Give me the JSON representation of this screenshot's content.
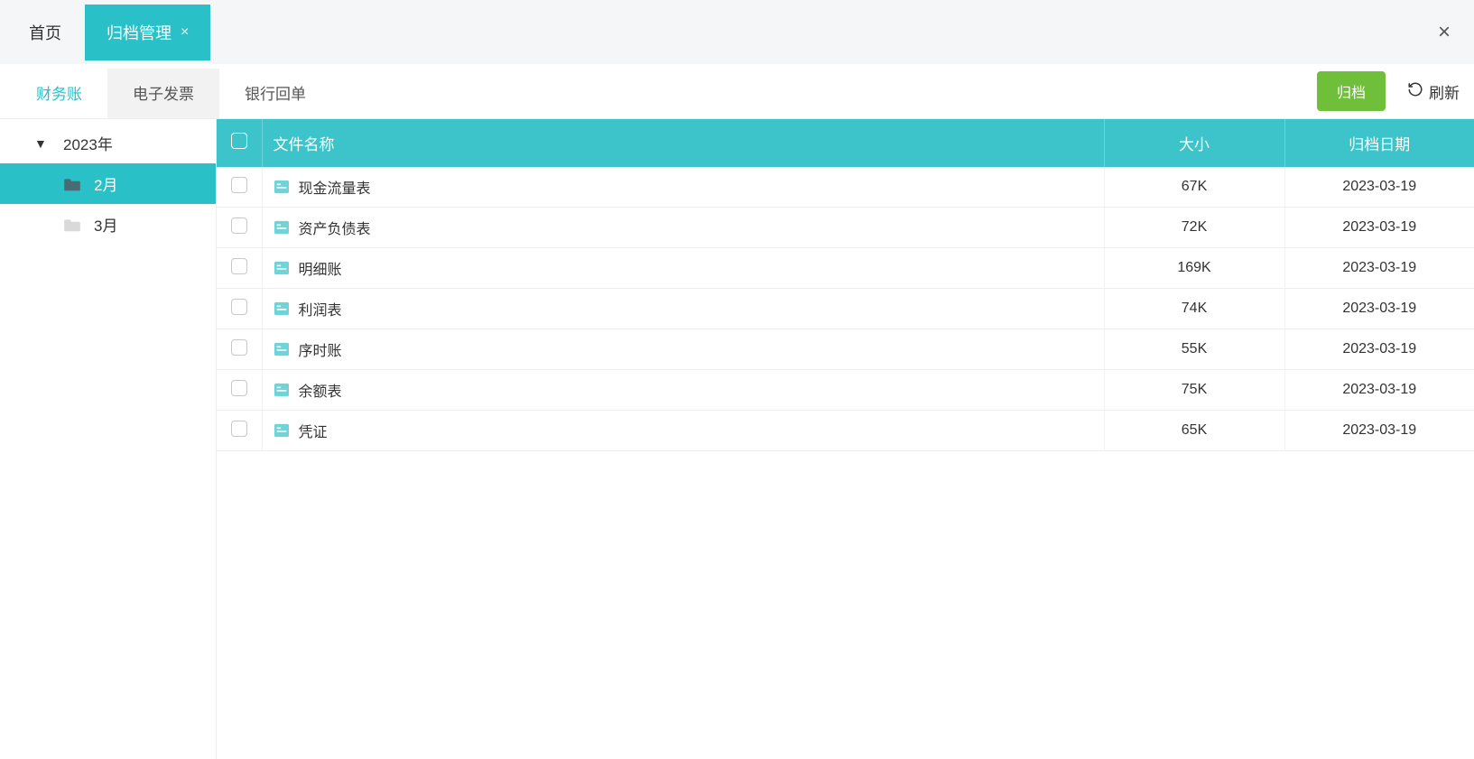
{
  "colors": {
    "accent": "#29c0c7",
    "table_header": "#3dc4cb",
    "primary_btn": "#6fbf3b",
    "file_icon": "#6fd3d8",
    "folder_active": "#4a6a74",
    "folder_inactive": "#d9d9d9",
    "border": "#eeeeee"
  },
  "top_tabs": {
    "home": "首页",
    "archive": "归档管理",
    "active_index": 1
  },
  "sub_tabs": {
    "items": [
      "财务账",
      "电子发票",
      "银行回单"
    ],
    "active_index": 0
  },
  "actions": {
    "archive_btn": "归档",
    "refresh_btn": "刷新"
  },
  "tree": {
    "year": "2023年",
    "months": [
      {
        "label": "2月",
        "active": true
      },
      {
        "label": "3月",
        "active": false
      }
    ]
  },
  "table": {
    "columns": {
      "name": "文件名称",
      "size": "大小",
      "date": "归档日期"
    },
    "rows": [
      {
        "name": "现金流量表",
        "size": "67K",
        "date": "2023-03-19"
      },
      {
        "name": "资产负债表",
        "size": "72K",
        "date": "2023-03-19"
      },
      {
        "name": "明细账",
        "size": "169K",
        "date": "2023-03-19"
      },
      {
        "name": "利润表",
        "size": "74K",
        "date": "2023-03-19"
      },
      {
        "name": "序时账",
        "size": "55K",
        "date": "2023-03-19"
      },
      {
        "name": "余额表",
        "size": "75K",
        "date": "2023-03-19"
      },
      {
        "name": "凭证",
        "size": "65K",
        "date": "2023-03-19"
      }
    ]
  }
}
